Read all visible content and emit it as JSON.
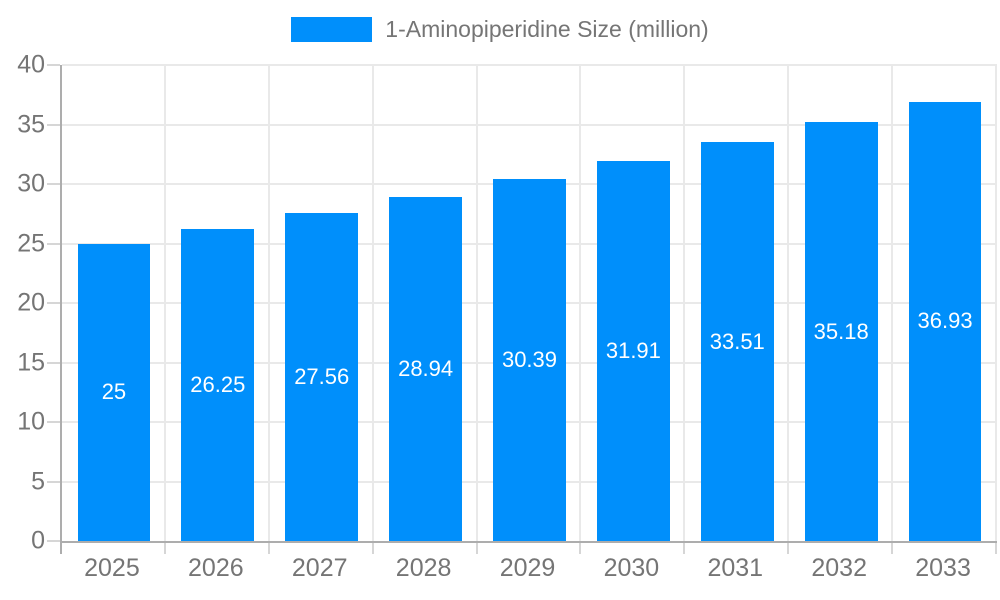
{
  "chart_data": {
    "type": "bar",
    "legend": {
      "label": "1-Aminopiperidine Size (million)",
      "position": "top"
    },
    "categories": [
      "2025",
      "2026",
      "2027",
      "2028",
      "2029",
      "2030",
      "2031",
      "2032",
      "2033"
    ],
    "values": [
      25,
      26.25,
      27.56,
      28.94,
      30.39,
      31.91,
      33.51,
      35.18,
      36.93
    ],
    "ylim": [
      0,
      40
    ],
    "yticks": [
      0,
      5,
      10,
      15,
      20,
      25,
      30,
      35,
      40
    ],
    "grid": true,
    "bar_width_fraction": 0.7,
    "colors": {
      "bar": "#008FFB",
      "bar_label": "#FFFFFF",
      "axis_line": "#ADADAD",
      "grid_line": "#E9E9E9",
      "tick_line": "#D6D6D6",
      "text": "#757575",
      "background": "#FFFFFF"
    }
  }
}
